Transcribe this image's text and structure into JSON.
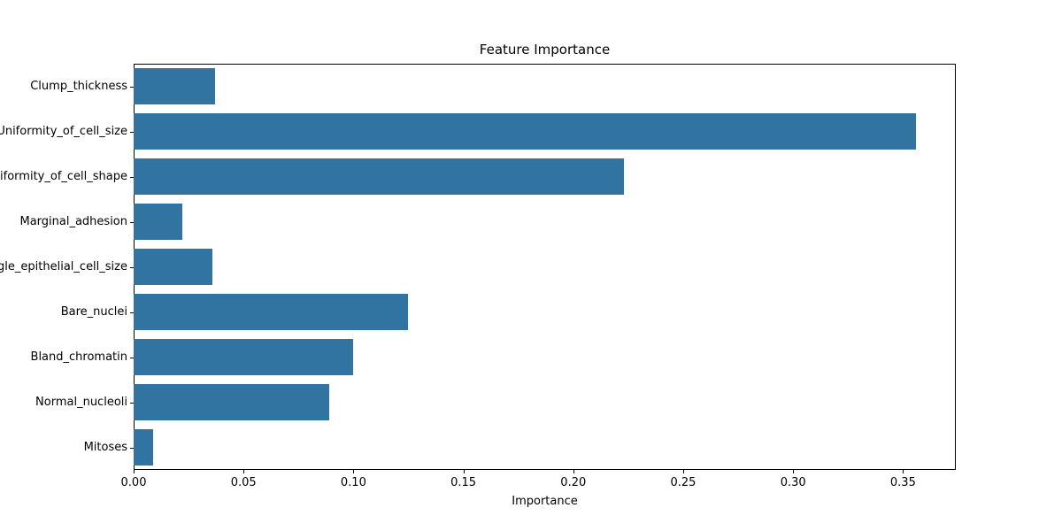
{
  "chart_data": {
    "type": "bar",
    "orientation": "horizontal",
    "title": "Feature Importance",
    "xlabel": "Importance",
    "ylabel": "",
    "categories": [
      "Clump_thickness",
      "Uniformity_of_cell_size",
      "Uniformity_of_cell_shape",
      "Marginal_adhesion",
      "Single_epithelial_cell_size",
      "Bare_nuclei",
      "Bland_chromatin",
      "Normal_nucleoli",
      "Mitoses"
    ],
    "values": [
      0.037,
      0.356,
      0.223,
      0.022,
      0.036,
      0.125,
      0.1,
      0.089,
      0.009
    ],
    "xlim": [
      0,
      0.374
    ],
    "xticks": [
      0.0,
      0.05,
      0.1,
      0.15,
      0.2,
      0.25,
      0.3,
      0.35
    ],
    "xtick_labels": [
      "0.00",
      "0.05",
      "0.10",
      "0.15",
      "0.20",
      "0.25",
      "0.30",
      "0.35"
    ],
    "grid": false,
    "legend": null,
    "bar_color": "#3274a1",
    "background_color": "#ffffff",
    "spine_color": "#000000"
  }
}
